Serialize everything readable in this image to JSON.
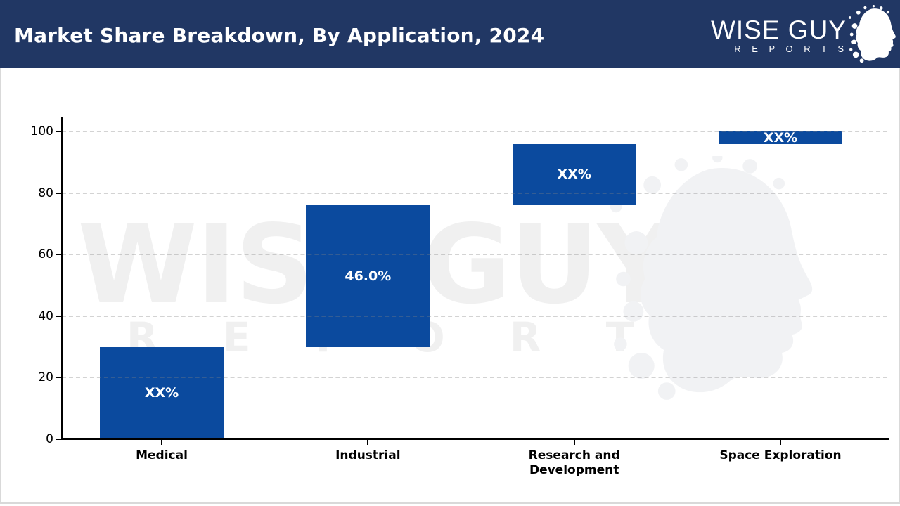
{
  "header": {
    "title": "Market Share Breakdown, By Application, 2024",
    "logo": {
      "line1": "WISE GUY",
      "line2": "R E P O R T S"
    }
  },
  "watermark": {
    "line1": "WISE GUY",
    "line2": "R E P O R T S"
  },
  "chart_data": {
    "type": "bar",
    "subtype": "waterfall",
    "title": "Market Share Breakdown, By Application, 2024",
    "xlabel": "",
    "ylabel": "",
    "ylim": [
      0,
      105
    ],
    "yticks": [
      0,
      20,
      40,
      60,
      80,
      100
    ],
    "grid": "horizontal dashed",
    "legend": "none",
    "categories": [
      "Medical",
      "Industrial",
      "Research and Development",
      "Space Exploration"
    ],
    "category_label_lines": [
      [
        "Medical"
      ],
      [
        "Industrial"
      ],
      [
        "Research and",
        "Development"
      ],
      [
        "Space Exploration"
      ]
    ],
    "segments": [
      {
        "name": "Medical",
        "start": 0,
        "end": 30,
        "value": 30,
        "label": "XX%"
      },
      {
        "name": "Industrial",
        "start": 30,
        "end": 76,
        "value": 46,
        "label": "46.0%"
      },
      {
        "name": "Research and Development",
        "start": 76,
        "end": 96,
        "value": 20,
        "label": "XX%"
      },
      {
        "name": "Space Exploration",
        "start": 96,
        "end": 100,
        "value": 4,
        "label": "XX%"
      }
    ]
  },
  "colors": {
    "header_bg": "#213764",
    "bar": "#0b4a9e",
    "axis": "#000000",
    "grid": "#c8c8c8",
    "watermark": "#f0f0f0",
    "border": "#d9d9d9"
  }
}
